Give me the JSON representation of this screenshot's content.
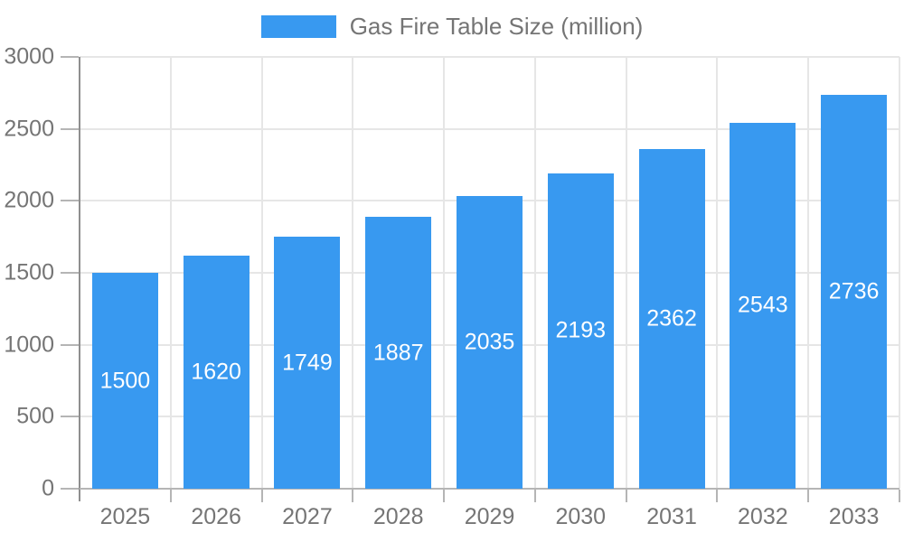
{
  "chart_data": {
    "type": "bar",
    "title": "Gas Fire Table Size (million)",
    "legend": {
      "label": "Gas Fire Table Size (million)",
      "position": "top"
    },
    "categories": [
      "2025",
      "2026",
      "2027",
      "2028",
      "2029",
      "2030",
      "2031",
      "2032",
      "2033"
    ],
    "series": [
      {
        "name": "Gas Fire Table Size (million)",
        "values": [
          1500,
          1620,
          1749,
          1887,
          2035,
          2193,
          2362,
          2543,
          2736
        ]
      }
    ],
    "value_labels_shown": true,
    "xlabel": "",
    "ylabel": "",
    "ylim": [
      0,
      3000
    ],
    "yticks": [
      0,
      500,
      1000,
      1500,
      2000,
      2500,
      3000
    ],
    "grid": true,
    "colors": {
      "background": "#ffffff",
      "bar": "#3899F0",
      "bar_value_label": "#ffffff",
      "axis_text": "#757575",
      "legend_text": "#757575",
      "gridline": "#e6e6e6",
      "y_axis_line": "#8f8f8f",
      "x_axis_line": "#b5b5b5",
      "tick": "#b5b5b5"
    }
  }
}
